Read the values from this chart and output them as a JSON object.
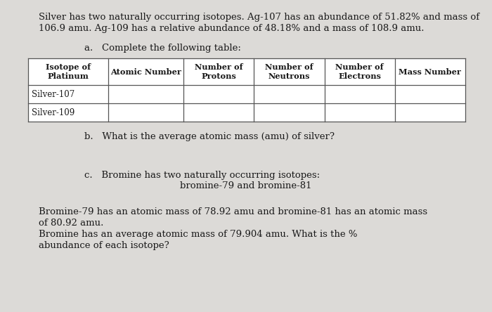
{
  "bg_color": "#e8e6e3",
  "text_color": "#1a1a1a",
  "intro_line1": "Silver has two naturally occurring isotopes. Ag-107 has an abundance of 51.82% and mass of",
  "intro_line2": "106.9 amu. Ag-109 has a relative abundance of 48.18% and a mass of 108.9 amu.",
  "part_a_label": "a.   Complete the following table:",
  "table_headers": [
    "Isotope of\nPlatinum",
    "Atomic Number",
    "Number of\nProtons",
    "Number of\nNeutrons",
    "Number of\nElectrons",
    "Mass Number"
  ],
  "table_rows": [
    "Silver-107",
    "Silver-109"
  ],
  "part_b_label": "b.   What is the average atomic mass (amu) of silver?",
  "part_c_label": "c.   Bromine has two naturally occurring isotopes:",
  "part_c_sub": "bromine-79 and bromine-81",
  "part_c_body1": "Bromine-79 has an atomic mass of 78.92 amu and bromine-81 has an atomic mass",
  "part_c_body1b": "of 80.92 amu.",
  "part_c_body2": "Bromine has an average atomic mass of 79.904 amu. What is the %",
  "part_c_body2b": "abundance of each isotope?"
}
